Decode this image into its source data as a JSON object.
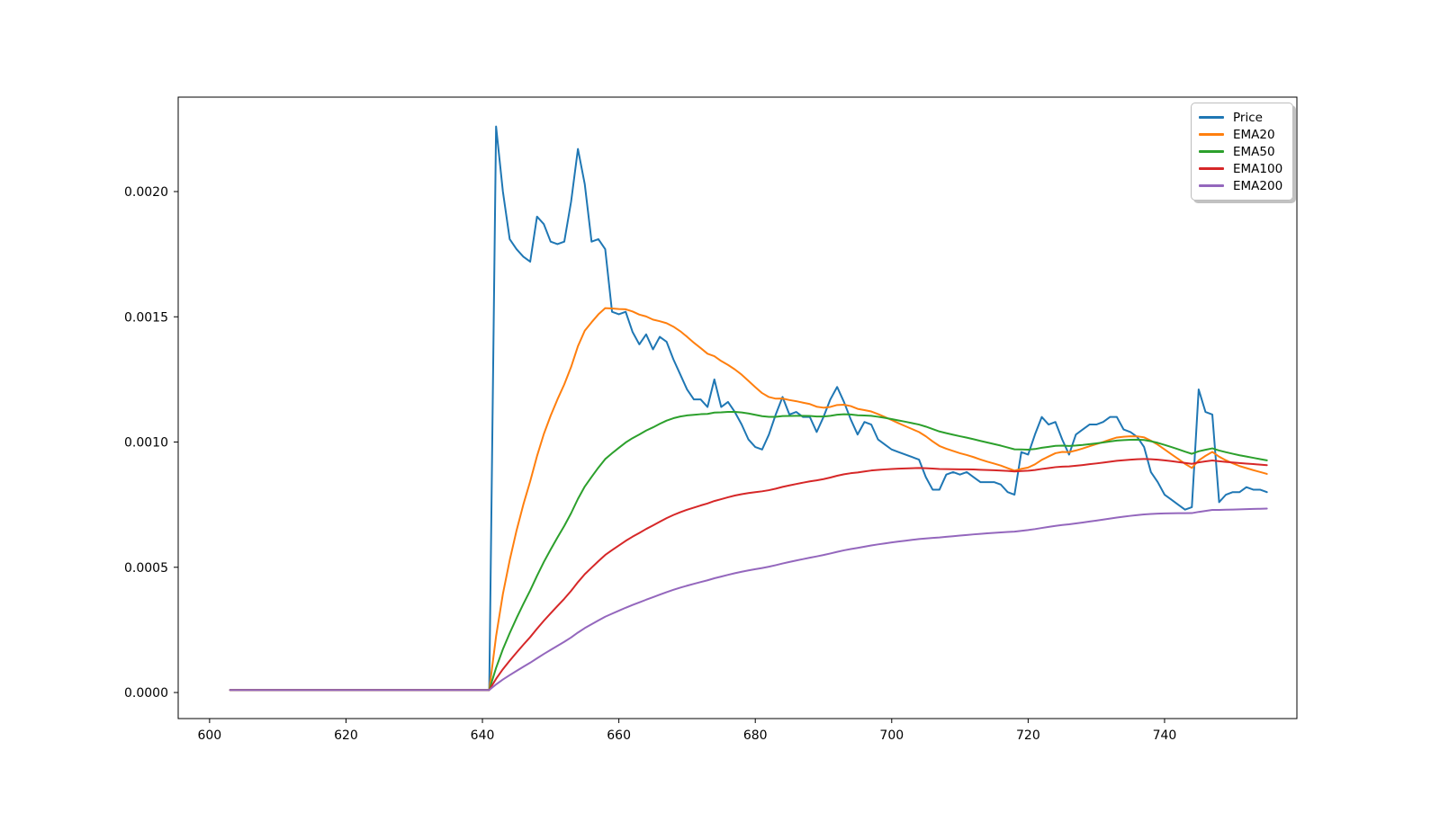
{
  "figure": {
    "background": "#ffffff",
    "title": ""
  },
  "chart_data": {
    "type": "line",
    "title": "",
    "xlabel": "",
    "ylabel": "",
    "grid": false,
    "x_start": 603,
    "x_step": 1,
    "xlim": [
      595.4,
      759.4
    ],
    "ylim": [
      -0.000104,
      0.002377
    ],
    "xticks": [
      600,
      620,
      640,
      660,
      680,
      700,
      720,
      740
    ],
    "yticks": [
      0.0,
      0.0005,
      0.001,
      0.0015,
      0.002
    ],
    "ytick_labels": [
      "0.0000",
      "0.0005",
      "0.0010",
      "0.0015",
      "0.0020"
    ],
    "axis_color": "#000000",
    "tick_label_color": "#000000",
    "legend": {
      "location": "upper right",
      "labels": [
        "Price",
        "EMA20",
        "EMA50",
        "EMA100",
        "EMA200"
      ]
    },
    "series": [
      {
        "name": "Price",
        "color": "#1f77b4",
        "y": [
          1e-05,
          1e-05,
          1e-05,
          1e-05,
          1e-05,
          1e-05,
          1e-05,
          1e-05,
          1e-05,
          1e-05,
          1e-05,
          1e-05,
          1e-05,
          1e-05,
          1e-05,
          1e-05,
          1e-05,
          1e-05,
          1e-05,
          1e-05,
          1e-05,
          1e-05,
          1e-05,
          1e-05,
          1e-05,
          1e-05,
          1e-05,
          1e-05,
          1e-05,
          1e-05,
          1e-05,
          1e-05,
          1e-05,
          1e-05,
          1e-05,
          1e-05,
          1e-05,
          1e-05,
          1e-05,
          0.00226,
          0.002,
          0.00181,
          0.00177,
          0.00174,
          0.00172,
          0.0019,
          0.00187,
          0.0018,
          0.00179,
          0.0018,
          0.00196,
          0.00217,
          0.00203,
          0.0018,
          0.00181,
          0.00177,
          0.00152,
          0.00151,
          0.00152,
          0.00144,
          0.00139,
          0.00143,
          0.00137,
          0.00142,
          0.0014,
          0.00133,
          0.00127,
          0.00121,
          0.00117,
          0.00117,
          0.00114,
          0.00125,
          0.00114,
          0.00116,
          0.00112,
          0.00107,
          0.00101,
          0.00098,
          0.00097,
          0.00103,
          0.00111,
          0.00118,
          0.00111,
          0.00112,
          0.0011,
          0.0011,
          0.00104,
          0.0011,
          0.00117,
          0.00122,
          0.00116,
          0.00109,
          0.00103,
          0.00108,
          0.00107,
          0.00101,
          0.00099,
          0.00097,
          0.00096,
          0.00095,
          0.00094,
          0.00093,
          0.00086,
          0.00081,
          0.00081,
          0.00087,
          0.00088,
          0.00087,
          0.00088,
          0.00086,
          0.00084,
          0.00084,
          0.00084,
          0.00083,
          0.0008,
          0.00079,
          0.00096,
          0.00095,
          0.00103,
          0.0011,
          0.00107,
          0.00108,
          0.00101,
          0.00095,
          0.00103,
          0.00105,
          0.00107,
          0.00107,
          0.00108,
          0.0011,
          0.0011,
          0.00105,
          0.00104,
          0.00102,
          0.00098,
          0.00088,
          0.00084,
          0.00079,
          0.00077,
          0.00075,
          0.00073,
          0.00074,
          0.00121,
          0.00112,
          0.00111,
          0.00076,
          0.00079,
          0.0008,
          0.0008,
          0.00082,
          0.00081,
          0.00081,
          0.0008
        ]
      },
      {
        "name": "EMA20",
        "color": "#ff7f0e",
        "derived": "ema_of_price",
        "period": 20
      },
      {
        "name": "EMA50",
        "color": "#2ca02c",
        "derived": "ema_of_price",
        "period": 50
      },
      {
        "name": "EMA100",
        "color": "#d62728",
        "derived": "ema_of_price",
        "period": 100
      },
      {
        "name": "EMA200",
        "color": "#9467bd",
        "derived": "ema_of_price",
        "period": 200
      }
    ]
  }
}
